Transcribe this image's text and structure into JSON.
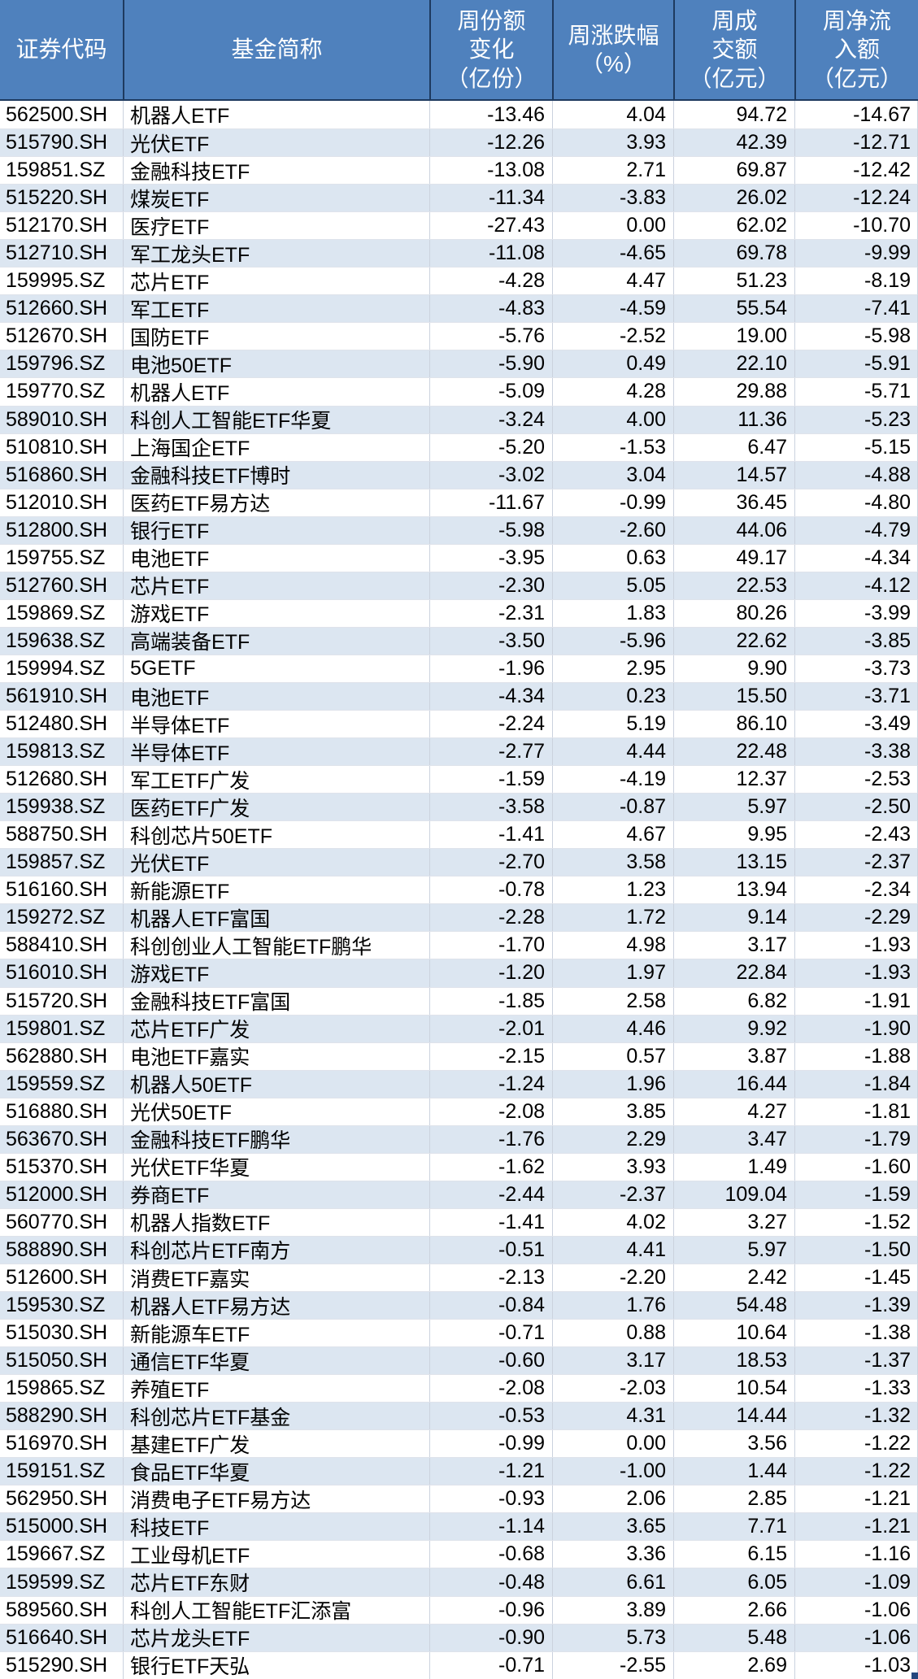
{
  "colors": {
    "header_bg": "#4F81BD",
    "header_text": "#FFFFFF",
    "band_row_bg": "#DCE6F1",
    "plain_row_bg": "#FFFFFF",
    "header_border": "#1E3A5F",
    "grid_line": "#CBD2DE",
    "body_text": "#000000",
    "selection_handle": "#24477E"
  },
  "chart_data": {
    "type": "table",
    "title": "",
    "columns": [
      "证券代码",
      "基金简称",
      "周份额\n变化\n（亿份）",
      "周涨跌幅\n（%）",
      "周成\n交额\n（亿元）",
      "周净流\n入额\n（亿元）"
    ],
    "rows": [
      [
        "562500.SH",
        "机器人ETF",
        "-13.46",
        "4.04",
        "94.72",
        "-14.67"
      ],
      [
        "515790.SH",
        "光伏ETF",
        "-12.26",
        "3.93",
        "42.39",
        "-12.71"
      ],
      [
        "159851.SZ",
        "金融科技ETF",
        "-13.08",
        "2.71",
        "69.87",
        "-12.42"
      ],
      [
        "515220.SH",
        "煤炭ETF",
        "-11.34",
        "-3.83",
        "26.02",
        "-12.24"
      ],
      [
        "512170.SH",
        "医疗ETF",
        "-27.43",
        "0.00",
        "62.02",
        "-10.70"
      ],
      [
        "512710.SH",
        "军工龙头ETF",
        "-11.08",
        "-4.65",
        "69.78",
        "-9.99"
      ],
      [
        "159995.SZ",
        "芯片ETF",
        "-4.28",
        "4.47",
        "51.23",
        "-8.19"
      ],
      [
        "512660.SH",
        "军工ETF",
        "-4.83",
        "-4.59",
        "55.54",
        "-7.41"
      ],
      [
        "512670.SH",
        "国防ETF",
        "-5.76",
        "-2.52",
        "19.00",
        "-5.98"
      ],
      [
        "159796.SZ",
        "电池50ETF",
        "-5.90",
        "0.49",
        "22.10",
        "-5.91"
      ],
      [
        "159770.SZ",
        "机器人ETF",
        "-5.09",
        "4.28",
        "29.88",
        "-5.71"
      ],
      [
        "589010.SH",
        "科创人工智能ETF华夏",
        "-3.24",
        "4.00",
        "11.36",
        "-5.23"
      ],
      [
        "510810.SH",
        "上海国企ETF",
        "-5.20",
        "-1.53",
        "6.47",
        "-5.15"
      ],
      [
        "516860.SH",
        "金融科技ETF博时",
        "-3.02",
        "3.04",
        "14.57",
        "-4.88"
      ],
      [
        "512010.SH",
        "医药ETF易方达",
        "-11.67",
        "-0.99",
        "36.45",
        "-4.80"
      ],
      [
        "512800.SH",
        "银行ETF",
        "-5.98",
        "-2.60",
        "44.06",
        "-4.79"
      ],
      [
        "159755.SZ",
        "电池ETF",
        "-3.95",
        "0.63",
        "49.17",
        "-4.34"
      ],
      [
        "512760.SH",
        "芯片ETF",
        "-2.30",
        "5.05",
        "22.53",
        "-4.12"
      ],
      [
        "159869.SZ",
        "游戏ETF",
        "-2.31",
        "1.83",
        "80.26",
        "-3.99"
      ],
      [
        "159638.SZ",
        "高端装备ETF",
        "-3.50",
        "-5.96",
        "22.62",
        "-3.85"
      ],
      [
        "159994.SZ",
        "5GETF",
        "-1.96",
        "2.95",
        "9.90",
        "-3.73"
      ],
      [
        "561910.SH",
        "电池ETF",
        "-4.34",
        "0.23",
        "15.50",
        "-3.71"
      ],
      [
        "512480.SH",
        "半导体ETF",
        "-2.24",
        "5.19",
        "86.10",
        "-3.49"
      ],
      [
        "159813.SZ",
        "半导体ETF",
        "-2.77",
        "4.44",
        "22.48",
        "-3.38"
      ],
      [
        "512680.SH",
        "军工ETF广发",
        "-1.59",
        "-4.19",
        "12.37",
        "-2.53"
      ],
      [
        "159938.SZ",
        "医药ETF广发",
        "-3.58",
        "-0.87",
        "5.97",
        "-2.50"
      ],
      [
        "588750.SH",
        "科创芯片50ETF",
        "-1.41",
        "4.67",
        "9.95",
        "-2.43"
      ],
      [
        "159857.SZ",
        "光伏ETF",
        "-2.70",
        "3.58",
        "13.15",
        "-2.37"
      ],
      [
        "516160.SH",
        "新能源ETF",
        "-0.78",
        "1.23",
        "13.94",
        "-2.34"
      ],
      [
        "159272.SZ",
        "机器人ETF富国",
        "-2.28",
        "1.72",
        "9.14",
        "-2.29"
      ],
      [
        "588410.SH",
        "科创创业人工智能ETF鹏华",
        "-1.70",
        "4.98",
        "3.17",
        "-1.93"
      ],
      [
        "516010.SH",
        "游戏ETF",
        "-1.20",
        "1.97",
        "22.84",
        "-1.93"
      ],
      [
        "515720.SH",
        "金融科技ETF富国",
        "-1.85",
        "2.58",
        "6.82",
        "-1.91"
      ],
      [
        "159801.SZ",
        "芯片ETF广发",
        "-2.01",
        "4.46",
        "9.92",
        "-1.90"
      ],
      [
        "562880.SH",
        "电池ETF嘉实",
        "-2.15",
        "0.57",
        "3.87",
        "-1.88"
      ],
      [
        "159559.SZ",
        "机器人50ETF",
        "-1.24",
        "1.96",
        "16.44",
        "-1.84"
      ],
      [
        "516880.SH",
        "光伏50ETF",
        "-2.08",
        "3.85",
        "4.27",
        "-1.81"
      ],
      [
        "563670.SH",
        "金融科技ETF鹏华",
        "-1.76",
        "2.29",
        "3.47",
        "-1.79"
      ],
      [
        "515370.SH",
        "光伏ETF华夏",
        "-1.62",
        "3.93",
        "1.49",
        "-1.60"
      ],
      [
        "512000.SH",
        "券商ETF",
        "-2.44",
        "-2.37",
        "109.04",
        "-1.59"
      ],
      [
        "560770.SH",
        "机器人指数ETF",
        "-1.41",
        "4.02",
        "3.27",
        "-1.52"
      ],
      [
        "588890.SH",
        "科创芯片ETF南方",
        "-0.51",
        "4.41",
        "5.97",
        "-1.50"
      ],
      [
        "512600.SH",
        "消费ETF嘉实",
        "-2.13",
        "-2.20",
        "2.42",
        "-1.45"
      ],
      [
        "159530.SZ",
        "机器人ETF易方达",
        "-0.84",
        "1.76",
        "54.48",
        "-1.39"
      ],
      [
        "515030.SH",
        "新能源车ETF",
        "-0.71",
        "0.88",
        "10.64",
        "-1.38"
      ],
      [
        "515050.SH",
        "通信ETF华夏",
        "-0.60",
        "3.17",
        "18.53",
        "-1.37"
      ],
      [
        "159865.SZ",
        "养殖ETF",
        "-2.08",
        "-2.03",
        "10.54",
        "-1.33"
      ],
      [
        "588290.SH",
        "科创芯片ETF基金",
        "-0.53",
        "4.31",
        "14.44",
        "-1.32"
      ],
      [
        "516970.SH",
        "基建ETF广发",
        "-0.99",
        "0.00",
        "3.56",
        "-1.22"
      ],
      [
        "159151.SZ",
        "食品ETF华夏",
        "-1.21",
        "-1.00",
        "1.44",
        "-1.22"
      ],
      [
        "562950.SH",
        "消费电子ETF易方达",
        "-0.93",
        "2.06",
        "2.85",
        "-1.21"
      ],
      [
        "515000.SH",
        "科技ETF",
        "-1.14",
        "3.65",
        "7.71",
        "-1.21"
      ],
      [
        "159667.SZ",
        "工业母机ETF",
        "-0.68",
        "3.36",
        "6.15",
        "-1.16"
      ],
      [
        "159599.SZ",
        "芯片ETF东财",
        "-0.48",
        "6.61",
        "6.05",
        "-1.09"
      ],
      [
        "589560.SH",
        "科创人工智能ETF汇添富",
        "-0.96",
        "3.89",
        "2.66",
        "-1.06"
      ],
      [
        "516640.SH",
        "芯片龙头ETF",
        "-0.90",
        "5.73",
        "5.48",
        "-1.06"
      ],
      [
        "515290.SH",
        "银行ETF天弘",
        "-0.71",
        "-2.55",
        "2.69",
        "-1.03"
      ]
    ]
  }
}
